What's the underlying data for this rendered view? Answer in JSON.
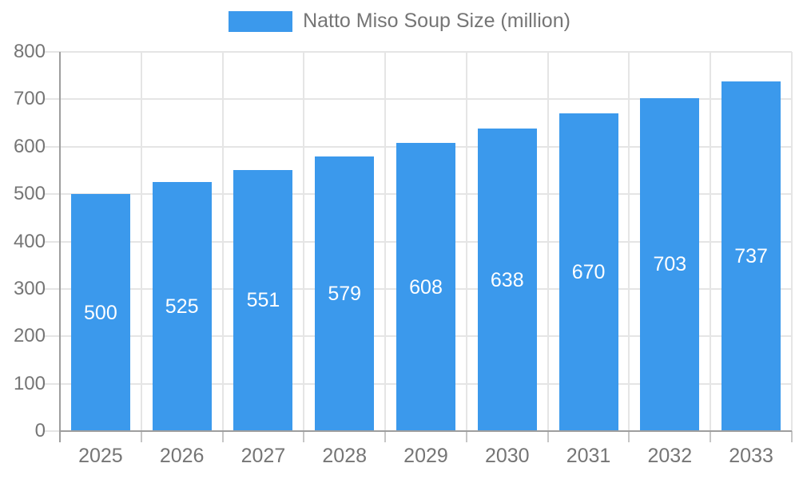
{
  "legend": {
    "label": "Natto Miso Soup Size (million)"
  },
  "chart_data": {
    "type": "bar",
    "title": "Natto Miso Soup Size (million)",
    "categories": [
      "2025",
      "2026",
      "2027",
      "2028",
      "2029",
      "2030",
      "2031",
      "2032",
      "2033"
    ],
    "values": [
      500,
      525,
      551,
      579,
      608,
      638,
      670,
      703,
      737
    ],
    "series": [
      {
        "name": "Natto Miso Soup Size (million)",
        "values": [
          500,
          525,
          551,
          579,
          608,
          638,
          670,
          703,
          737
        ]
      }
    ],
    "xlabel": "",
    "ylabel": "",
    "ylim": [
      0,
      800
    ],
    "y_ticks": [
      0,
      100,
      200,
      300,
      400,
      500,
      600,
      700,
      800
    ],
    "grid": true,
    "legend_position": "top-center",
    "bar_value_labels_visible": true,
    "colors": {
      "bar": "#3B99EC",
      "axis_line": "#9E9E9E",
      "gridline": "#E5E5E5",
      "tick": "#C6C6C6",
      "axis_label": "#757575",
      "bar_label": "#FFFFFF",
      "background": "#FFFFFF"
    }
  }
}
